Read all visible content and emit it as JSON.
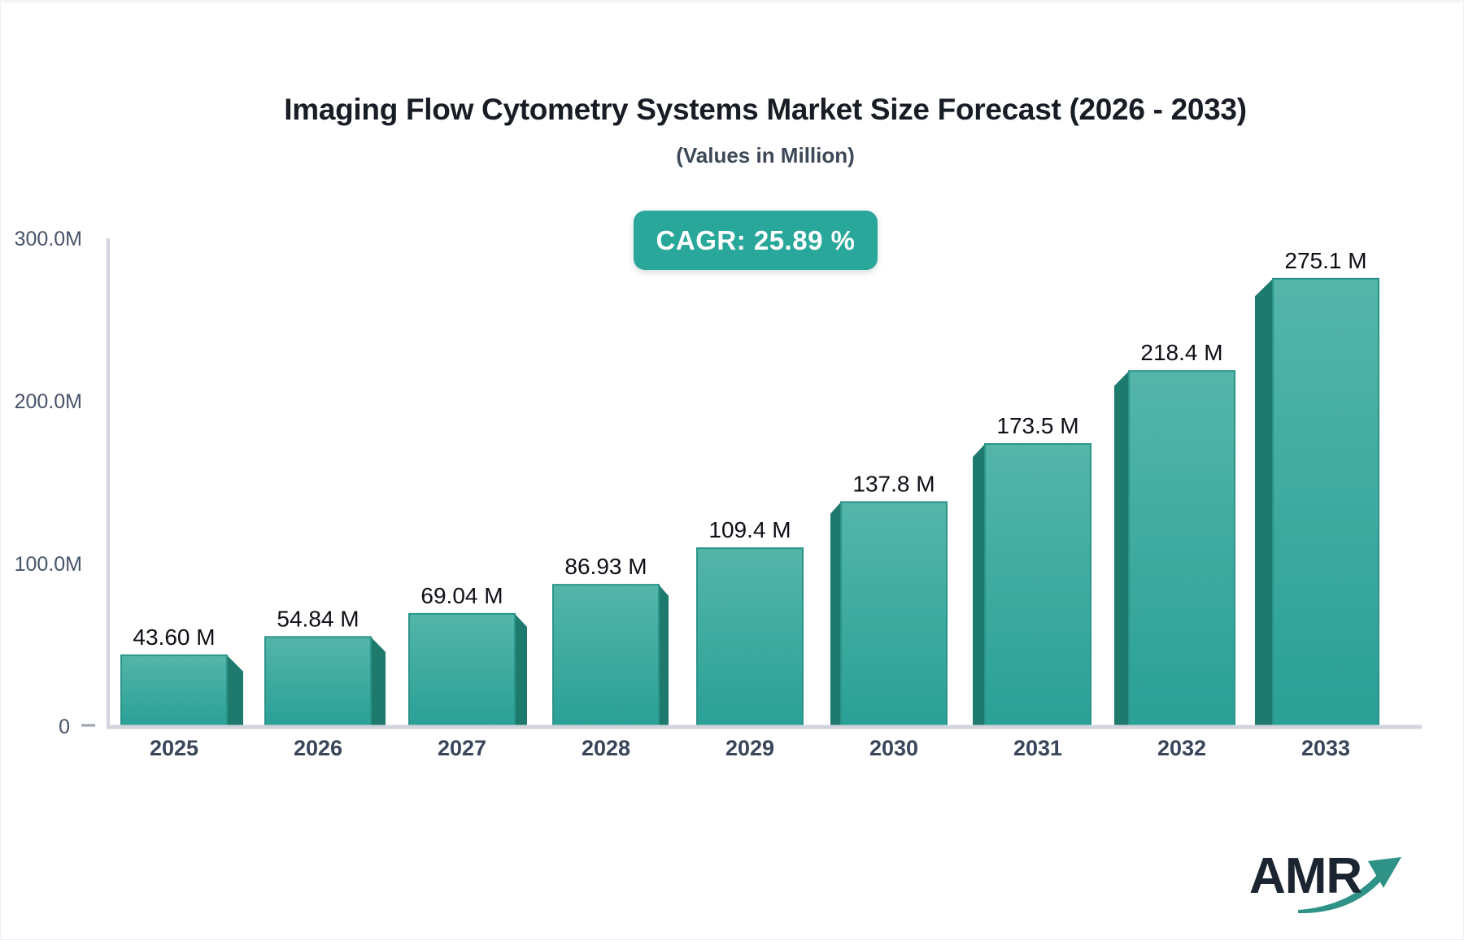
{
  "chart_data": {
    "type": "bar",
    "title": "Imaging Flow Cytometry Systems Market Size Forecast (2026 - 2033)",
    "subtitle": "(Values in Million)",
    "annotation": "CAGR: 25.89 %",
    "categories": [
      "2025",
      "2026",
      "2027",
      "2028",
      "2029",
      "2030",
      "2031",
      "2032",
      "2033"
    ],
    "values": [
      43.6,
      54.84,
      69.04,
      86.93,
      109.4,
      137.8,
      173.5,
      218.4,
      275.1
    ],
    "value_labels": [
      "43.60 M",
      "54.84 M",
      "69.04 M",
      "86.93 M",
      "109.4 M",
      "137.8 M",
      "173.5 M",
      "218.4 M",
      "275.1 M"
    ],
    "ylabel": "",
    "xlabel": "",
    "ylim": [
      0,
      300
    ],
    "y_ticks": [
      {
        "label": "300.0M",
        "value": 300
      },
      {
        "label": "200.0M",
        "value": 200
      },
      {
        "label": "100.0M",
        "value": 100
      },
      {
        "label": "0",
        "value": 0
      }
    ],
    "grid": false,
    "legend": "none",
    "bar_style": "3d-perspective-toward-center",
    "colors": {
      "bar_top": "#54b5a9",
      "bar_bottom": "#2aa096",
      "bar_side": "#1f7a6e",
      "bar_stroke": "#2b9488",
      "axis": "#d3d5de",
      "tick_dash": "#9aa0ae",
      "y_label": "#47536a",
      "x_label": "#39455a",
      "value_label": "#0d1016",
      "badge_bg": "#29a79a",
      "badge_text": "#ffffff"
    }
  },
  "logo": {
    "text": "AMR",
    "arrow_color": "#2e9287",
    "text_color": "#1b2531"
  }
}
